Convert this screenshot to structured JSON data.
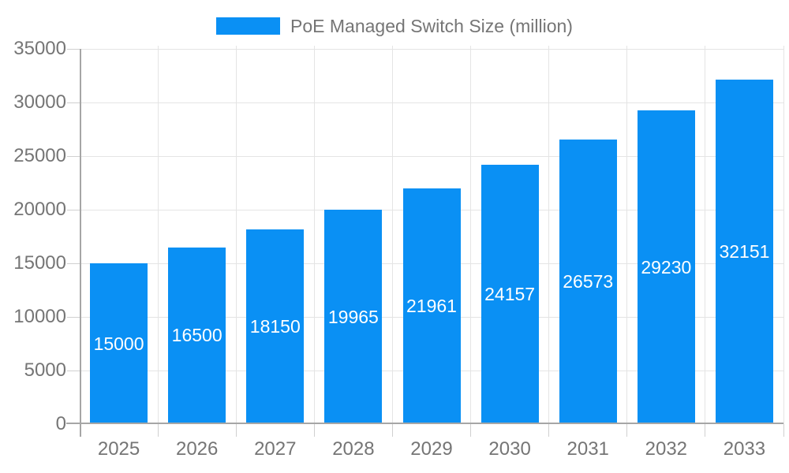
{
  "legend": {
    "label": "PoE Managed Switch Size (million)"
  },
  "colors": {
    "bar": "#0a90f4",
    "grid": "#e4e4e4",
    "tick": "#d0d0d0",
    "axis": "#a6a6a6",
    "text": "#757575",
    "bar_label": "#ffffff",
    "background": "#ffffff"
  },
  "chart_data": {
    "type": "bar",
    "title": "PoE Managed Switch Size (million)",
    "series_name": "PoE Managed Switch Size (million)",
    "categories": [
      "2025",
      "2026",
      "2027",
      "2028",
      "2029",
      "2030",
      "2031",
      "2032",
      "2033"
    ],
    "values": [
      15000,
      16500,
      18150,
      19965,
      21961,
      24157,
      26573,
      29230,
      32151
    ],
    "bar_labels": [
      "15000",
      "16500",
      "18150",
      "19965",
      "21961",
      "24157",
      "26573",
      "29230",
      "32151"
    ],
    "xlabel": "",
    "ylabel": "",
    "ylim": [
      0,
      35000
    ],
    "yticks": [
      0,
      5000,
      10000,
      15000,
      20000,
      25000,
      30000,
      35000
    ],
    "grid": true,
    "legend_position": "top",
    "bar_labels_visible": true,
    "bar_label_position": "center"
  }
}
